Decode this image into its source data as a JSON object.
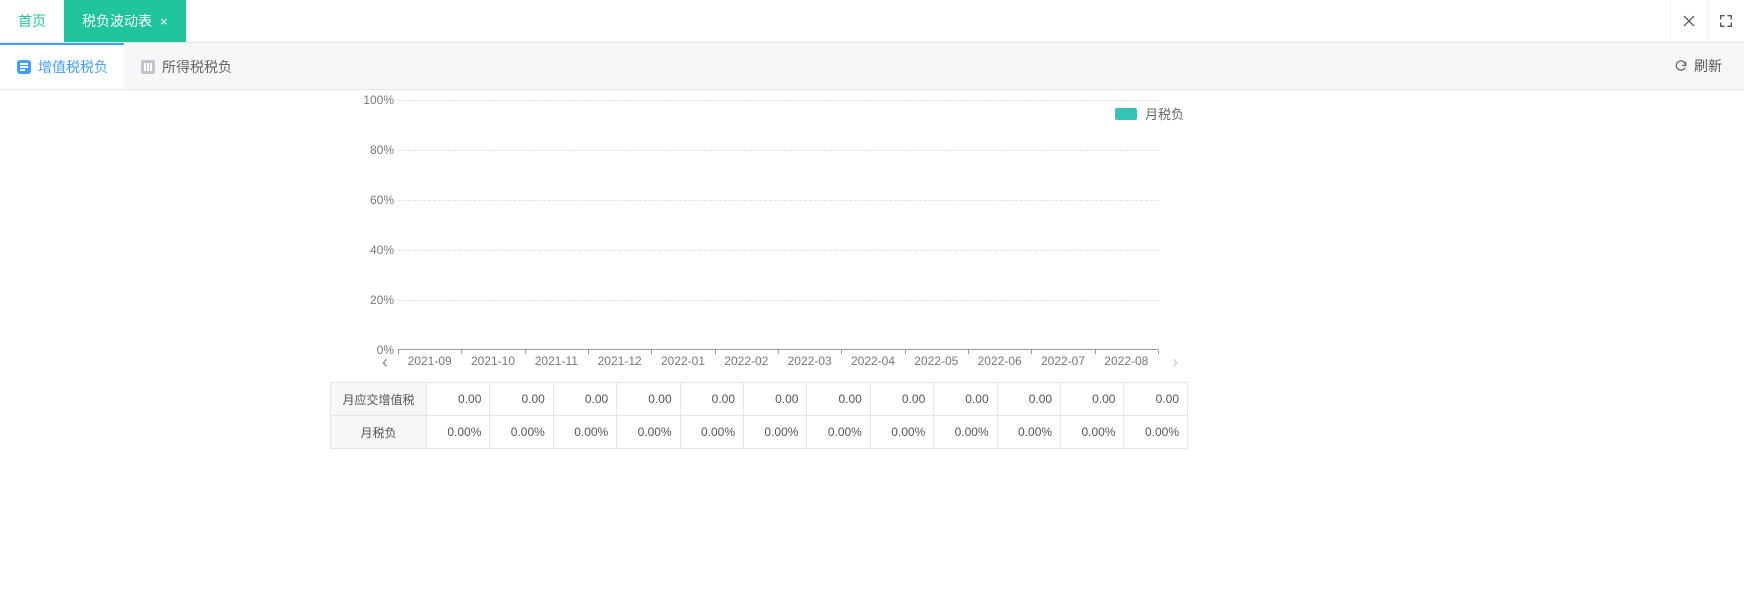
{
  "tabs": {
    "home": "首页",
    "active": "税负波动表"
  },
  "inner_tabs": {
    "vat": "增值税税负",
    "income": "所得税税负"
  },
  "refresh_label": "刷新",
  "chart": {
    "type": "bar",
    "legend_label": "月税负",
    "legend_color": "#34c3b4",
    "grid_color": "#e3e3e3",
    "axis_color": "#999999",
    "background_color": "#ffffff",
    "y_ticks": [
      "0%",
      "20%",
      "40%",
      "60%",
      "80%",
      "100%"
    ],
    "ylim": [
      0,
      100
    ],
    "categories": [
      "2021-09",
      "2021-10",
      "2021-11",
      "2021-12",
      "2022-01",
      "2022-02",
      "2022-03",
      "2022-04",
      "2022-05",
      "2022-06",
      "2022-07",
      "2022-08"
    ],
    "values": [
      0,
      0,
      0,
      0,
      0,
      0,
      0,
      0,
      0,
      0,
      0,
      0
    ]
  },
  "table": {
    "row1_label": "月应交增值税",
    "row2_label": "月税负",
    "row1": [
      "0.00",
      "0.00",
      "0.00",
      "0.00",
      "0.00",
      "0.00",
      "0.00",
      "0.00",
      "0.00",
      "0.00",
      "0.00",
      "0.00"
    ],
    "row2": [
      "0.00%",
      "0.00%",
      "0.00%",
      "0.00%",
      "0.00%",
      "0.00%",
      "0.00%",
      "0.00%",
      "0.00%",
      "0.00%",
      "0.00%",
      "0.00%"
    ]
  }
}
